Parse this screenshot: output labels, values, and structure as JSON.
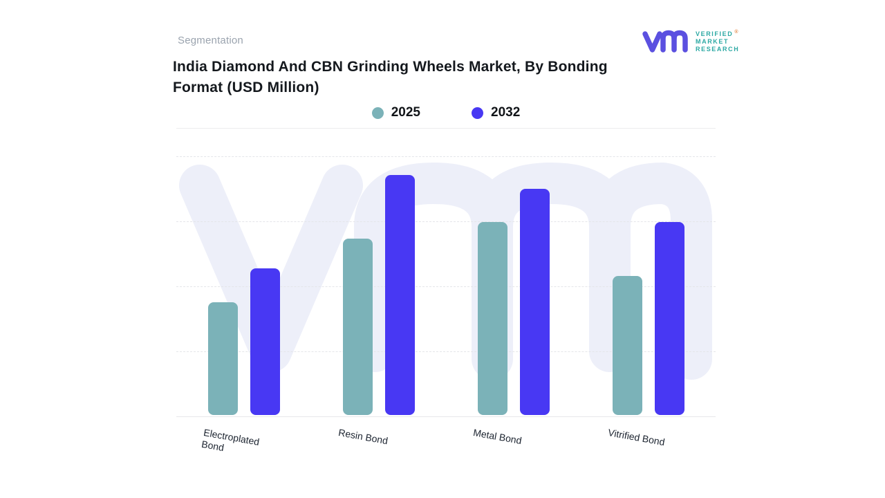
{
  "header": {
    "eyebrow": "Segmentation",
    "title": "India Diamond And CBN Grinding Wheels Market, By Bonding Format (USD Million)",
    "logo": {
      "lines": [
        "VERIFIED",
        "MARKET",
        "RESEARCH"
      ],
      "registered": "®",
      "mark_color": "#5b50e0",
      "text_color": "#2ba8a3"
    }
  },
  "legend": [
    {
      "label": "2025",
      "color": "#7bb2b8"
    },
    {
      "label": "2032",
      "color": "#4838f3"
    }
  ],
  "chart_data": {
    "type": "bar",
    "title": "India Diamond And CBN Grinding Wheels Market, By Bonding Format (USD Million)",
    "categories": [
      "Electroplated Bond",
      "Resin Bond",
      "Metal Bond",
      "Vitrified Bond"
    ],
    "series": [
      {
        "name": "2025",
        "color": "#7bb2b8",
        "values": [
          1.73,
          2.71,
          2.97,
          2.14
        ]
      },
      {
        "name": "2032",
        "color": "#4838f3",
        "values": [
          2.25,
          3.69,
          3.48,
          2.97
        ]
      }
    ],
    "xlabel": "",
    "ylabel": "",
    "ylim": [
      0,
      4.04
    ],
    "units": "USD Million (value axis unlabeled; values estimated in gridline units)",
    "grid": "4 dashed horizontal gridlines, solid baseline, no y tick labels",
    "legend_position": "top-center"
  },
  "watermark": {
    "name": "vmr-logo-watermark",
    "color": "#edeff9"
  }
}
